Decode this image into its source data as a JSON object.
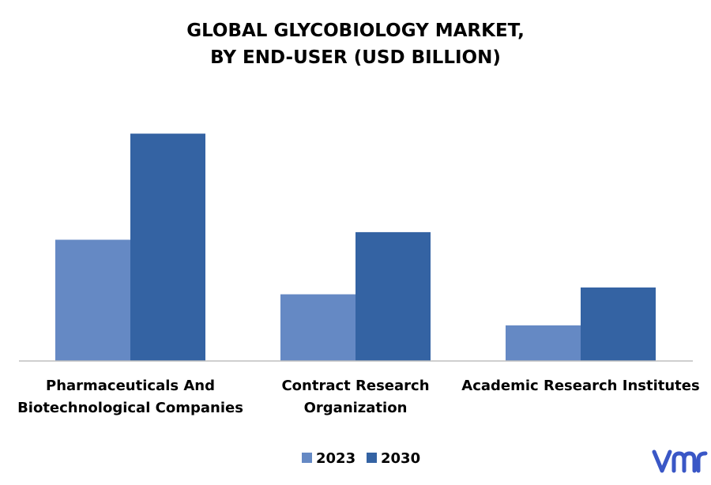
{
  "chart_data": {
    "type": "bar",
    "title": [
      "GLOBAL GLYCOBIOLOGY MARKET,",
      "BY END-USER (USD BILLION)"
    ],
    "categories": [
      [
        "Pharmaceuticals And",
        "Biotechnological Companies"
      ],
      [
        "Contract Research",
        "Organization"
      ],
      [
        "Academic Research Institutes"
      ]
    ],
    "series": [
      {
        "name": "2023",
        "color": "#6589c4",
        "values": [
          1.6,
          0.88,
          0.47
        ]
      },
      {
        "name": "2030",
        "color": "#3463a3",
        "values": [
          3.0,
          1.7,
          0.97
        ]
      }
    ],
    "ylim": [
      0,
      3.2
    ],
    "grid": false,
    "legend_position": "bottom-center"
  },
  "logo": {
    "icon": "vmr-logo-icon",
    "text": "vmr",
    "color": "#3a57c6"
  }
}
